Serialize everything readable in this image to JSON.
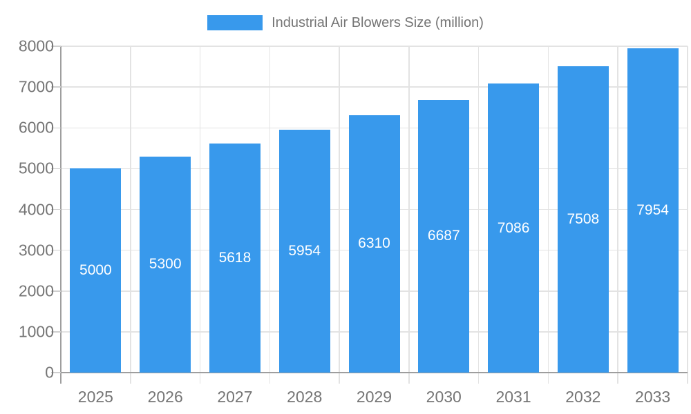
{
  "chart_data": {
    "type": "bar",
    "title": "Industrial Air Blowers Size (million)",
    "categories": [
      "2025",
      "2026",
      "2027",
      "2028",
      "2029",
      "2030",
      "2031",
      "2032",
      "2033"
    ],
    "series": [
      {
        "name": "Industrial Air Blowers Size (million)",
        "values": [
          5000,
          5300,
          5618,
          5954,
          6310,
          6687,
          7086,
          7508,
          7954
        ]
      }
    ],
    "xlabel": "",
    "ylabel": "",
    "ylim": [
      0,
      8000
    ],
    "yticks": [
      0,
      1000,
      2000,
      3000,
      4000,
      5000,
      6000,
      7000,
      8000
    ],
    "grid": true,
    "legend_position": "top",
    "bar_label_position": "inside-center"
  },
  "colors": {
    "bar": "#3899EC",
    "grid": "#e3e3e3",
    "axis": "#9e9e9e",
    "tick": "#cfcfcf",
    "axis_label": "#757575",
    "bar_label": "#ffffff",
    "legend_text": "#757575",
    "background": "#ffffff"
  }
}
